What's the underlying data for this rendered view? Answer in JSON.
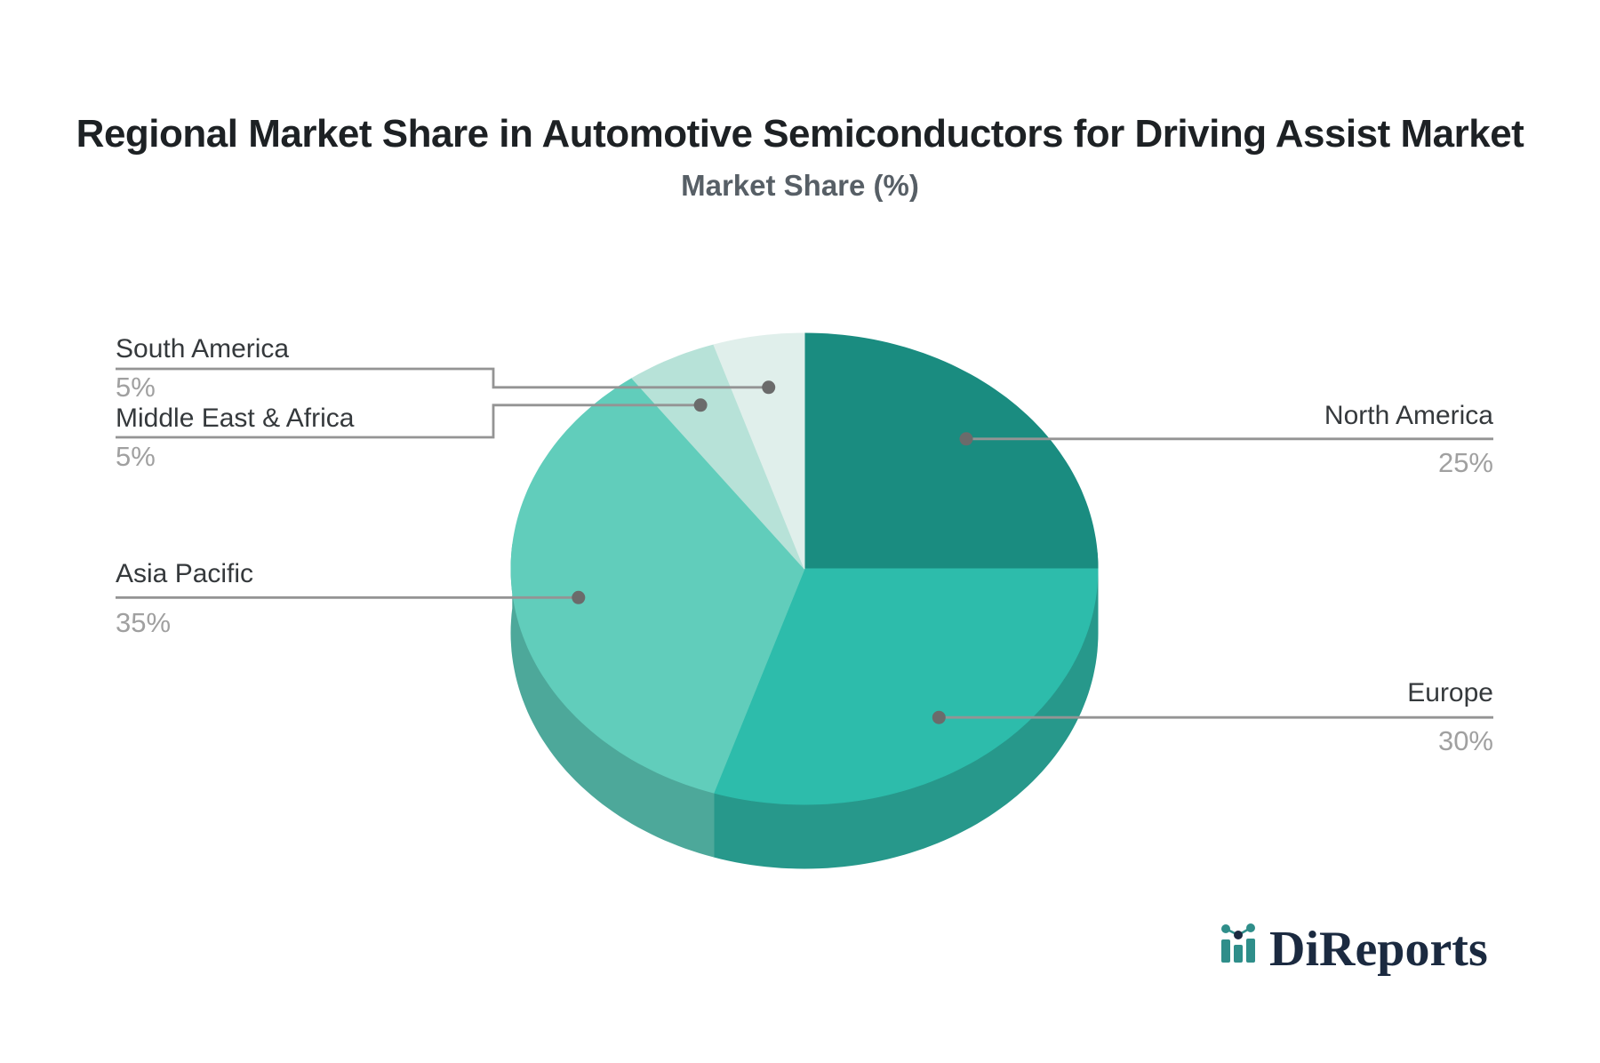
{
  "header": {
    "title": "Regional Market Share in Automotive Semiconductors for Driving Assist Market",
    "subtitle": "Market Share (%)"
  },
  "chart_data": {
    "type": "pie",
    "title": "Regional Market Share in Automotive Semiconductors for Driving Assist Market",
    "subtitle": "Market Share (%)",
    "unit": "%",
    "effect": "3d",
    "start_angle_deg": 0,
    "direction": "clockwise",
    "legend_position": "callout-labels",
    "slices": [
      {
        "label": "North America",
        "value": 25,
        "display_value": "25%",
        "color": "#1a8c80",
        "depth_color": "#157267",
        "label_side": "right"
      },
      {
        "label": "Europe",
        "value": 30,
        "display_value": "30%",
        "color": "#2dbcab",
        "depth_color": "#27988b",
        "label_side": "right"
      },
      {
        "label": "Asia Pacific",
        "value": 35,
        "display_value": "35%",
        "color": "#61cdbb",
        "depth_color": "#4da89a",
        "label_side": "left"
      },
      {
        "label": "Middle East & Africa",
        "value": 5,
        "display_value": "5%",
        "color": "#b7e2d8",
        "depth_color": "#93c5b9",
        "label_side": "left-top"
      },
      {
        "label": "South America",
        "value": 5,
        "display_value": "5%",
        "color": "#e0efeb",
        "depth_color": "#b8cfc8",
        "label_side": "left-top"
      }
    ]
  },
  "colors": {
    "leader_line": "#949494",
    "leader_dot": "#6b6b6b",
    "label_text": "#35393c",
    "value_text": "#a0a0a0",
    "logo_teal": "#2f8e8a",
    "logo_navy": "#1b2a40"
  },
  "logo": {
    "text": "DiReports",
    "icon": "bar-chart-with-trendline-icon"
  }
}
